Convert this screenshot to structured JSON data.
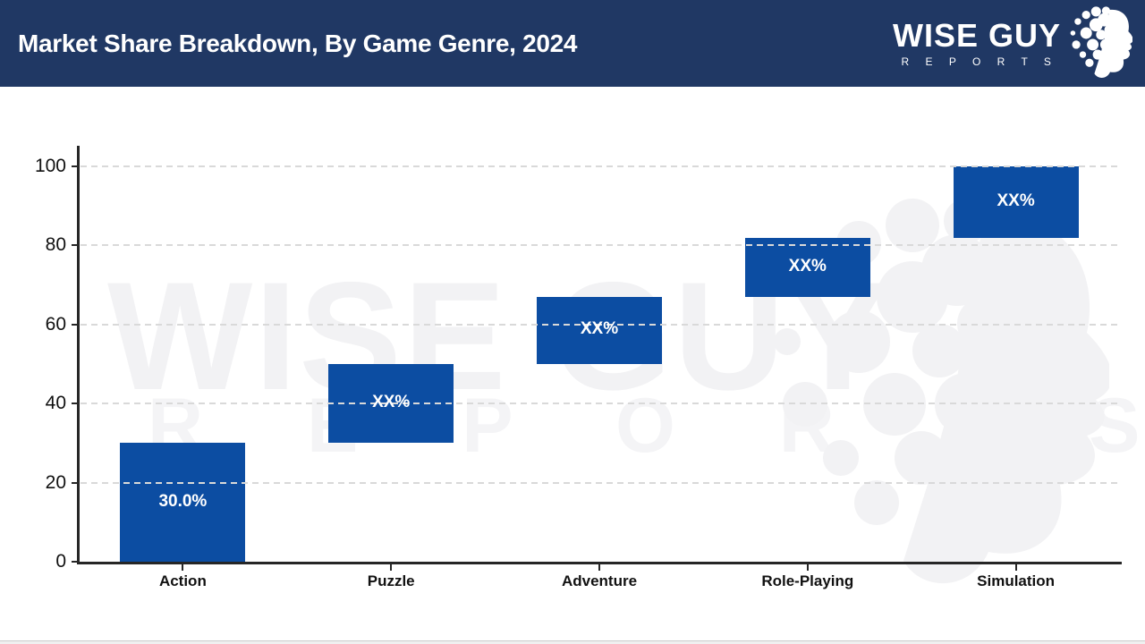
{
  "header": {
    "title": "Market Share Breakdown, By Game Genre, 2024",
    "background_color": "#203864",
    "logo": {
      "wordmark": "WISE GUY",
      "subtext": "R E P O R T S"
    }
  },
  "watermark": {
    "wordmark": "WISE GUY",
    "subtext": "R E P O R T S"
  },
  "chart_data": {
    "type": "bar",
    "variant": "waterfall-floating-bars",
    "title": "Market Share Breakdown, By Game Genre, 2024",
    "categories": [
      "Action",
      "Puzzle",
      "Adventure",
      "Role-Playing",
      "Simulation"
    ],
    "segments": [
      {
        "category": "Action",
        "start": 0,
        "end": 30,
        "label": "30.0%"
      },
      {
        "category": "Puzzle",
        "start": 30,
        "end": 50,
        "label": "XX%"
      },
      {
        "category": "Adventure",
        "start": 50,
        "end": 67,
        "label": "XX%"
      },
      {
        "category": "Role-Playing",
        "start": 67,
        "end": 82,
        "label": "XX%"
      },
      {
        "category": "Simulation",
        "start": 82,
        "end": 100,
        "label": "XX%"
      }
    ],
    "yticks": [
      0,
      20,
      40,
      60,
      80,
      100
    ],
    "ylim": [
      0,
      100
    ],
    "xlabel": "",
    "ylabel": "",
    "legend": "none",
    "grid": {
      "horizontal": true,
      "style": "dashed",
      "drawn_over_bars": true
    },
    "bar_color": "#0c4da2",
    "bar_label_color": "#ffffff",
    "axis_color": "#262626",
    "grid_color": "#d9d9d9",
    "tick_label_color": "#111111"
  }
}
